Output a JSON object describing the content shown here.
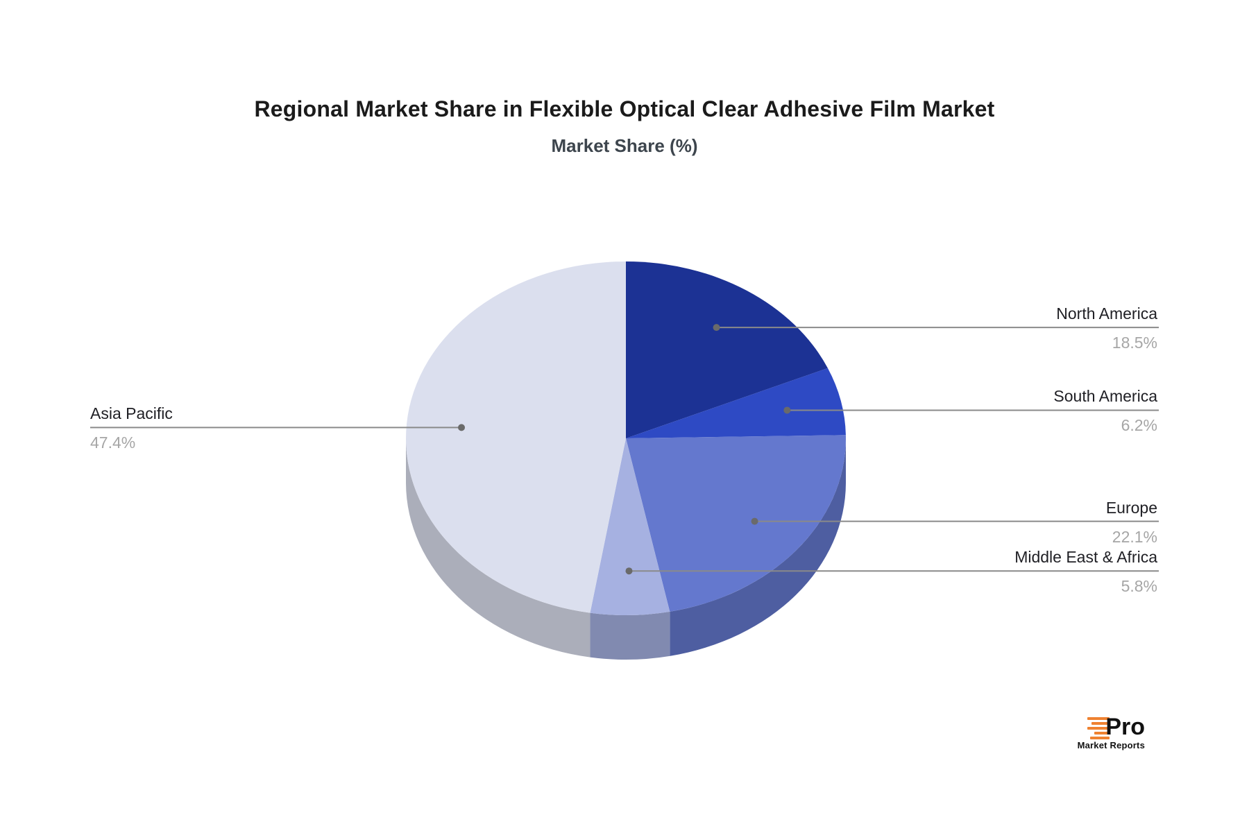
{
  "chart_data": {
    "type": "pie",
    "title": "Regional Market Share in Flexible Optical Clear Adhesive Film Market",
    "subtitle": "Market Share (%)",
    "unit": "%",
    "style": "3d-pie",
    "start_angle_deg": -90,
    "direction": "clockwise",
    "slices": [
      {
        "label": "North America",
        "value": 18.5,
        "display": "18.5%",
        "color": "#1c3294"
      },
      {
        "label": "South America",
        "value": 6.2,
        "display": "6.2%",
        "color": "#2e4ac4"
      },
      {
        "label": "Europe",
        "value": 22.1,
        "display": "22.1%",
        "color": "#6478ce"
      },
      {
        "label": "Middle East & Africa",
        "value": 5.8,
        "display": "5.8%",
        "color": "#a6b1e1"
      },
      {
        "label": "Asia Pacific",
        "value": 47.4,
        "display": "47.4%",
        "color": "#dbdfee"
      }
    ],
    "legend_position": "none",
    "labels": "outside-with-leader-lines",
    "label_text_color": "#1f1f24",
    "value_text_color": "#a6a6a6",
    "leader_line_color": "#8a8a8a",
    "leader_dot_color": "#6a6a6a"
  },
  "branding": {
    "logo_text": "Pro",
    "logo_subtext": "Market Reports",
    "logo_bar_color": "#ef8231"
  }
}
